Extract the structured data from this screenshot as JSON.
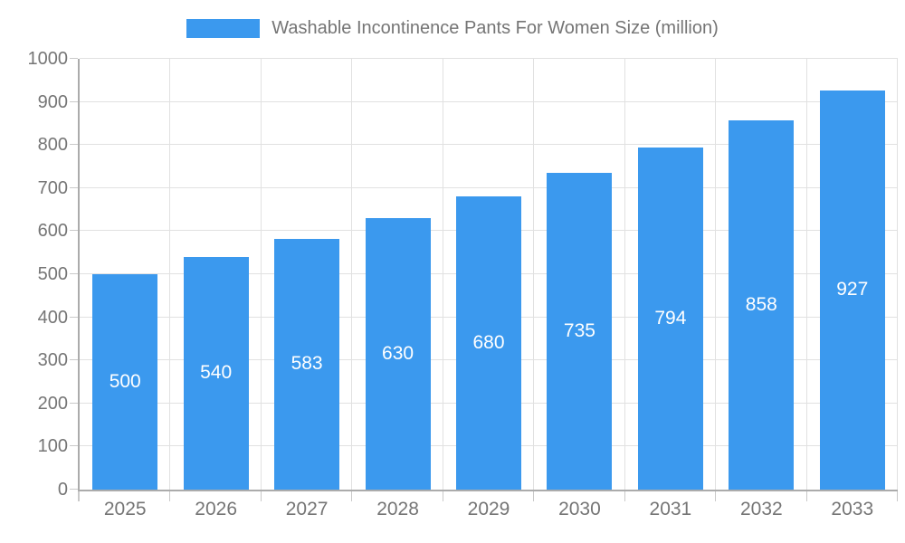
{
  "chart_data": {
    "type": "bar",
    "title": "Washable Incontinence Pants For Women Size (million)",
    "categories": [
      "2025",
      "2026",
      "2027",
      "2028",
      "2029",
      "2030",
      "2031",
      "2032",
      "2033"
    ],
    "series": [
      {
        "name": "Washable Incontinence Pants For Women Size (million)",
        "values": [
          500,
          540,
          583,
          630,
          680,
          735,
          794,
          858,
          927
        ]
      }
    ],
    "xlabel": "",
    "ylabel": "",
    "ylim": [
      0,
      1000
    ],
    "ytick_step": 100,
    "grid": true,
    "legend_position": "top-center",
    "value_labels": "inside-center"
  },
  "colors": {
    "bar": "#3B99EE",
    "gridline": "#E1E1E1",
    "tick": "#C9C9C9",
    "axis": "#ABABAB",
    "axis_text": "#757575",
    "value_label_text": "#FFFFFF",
    "background": "#FFFFFF"
  }
}
